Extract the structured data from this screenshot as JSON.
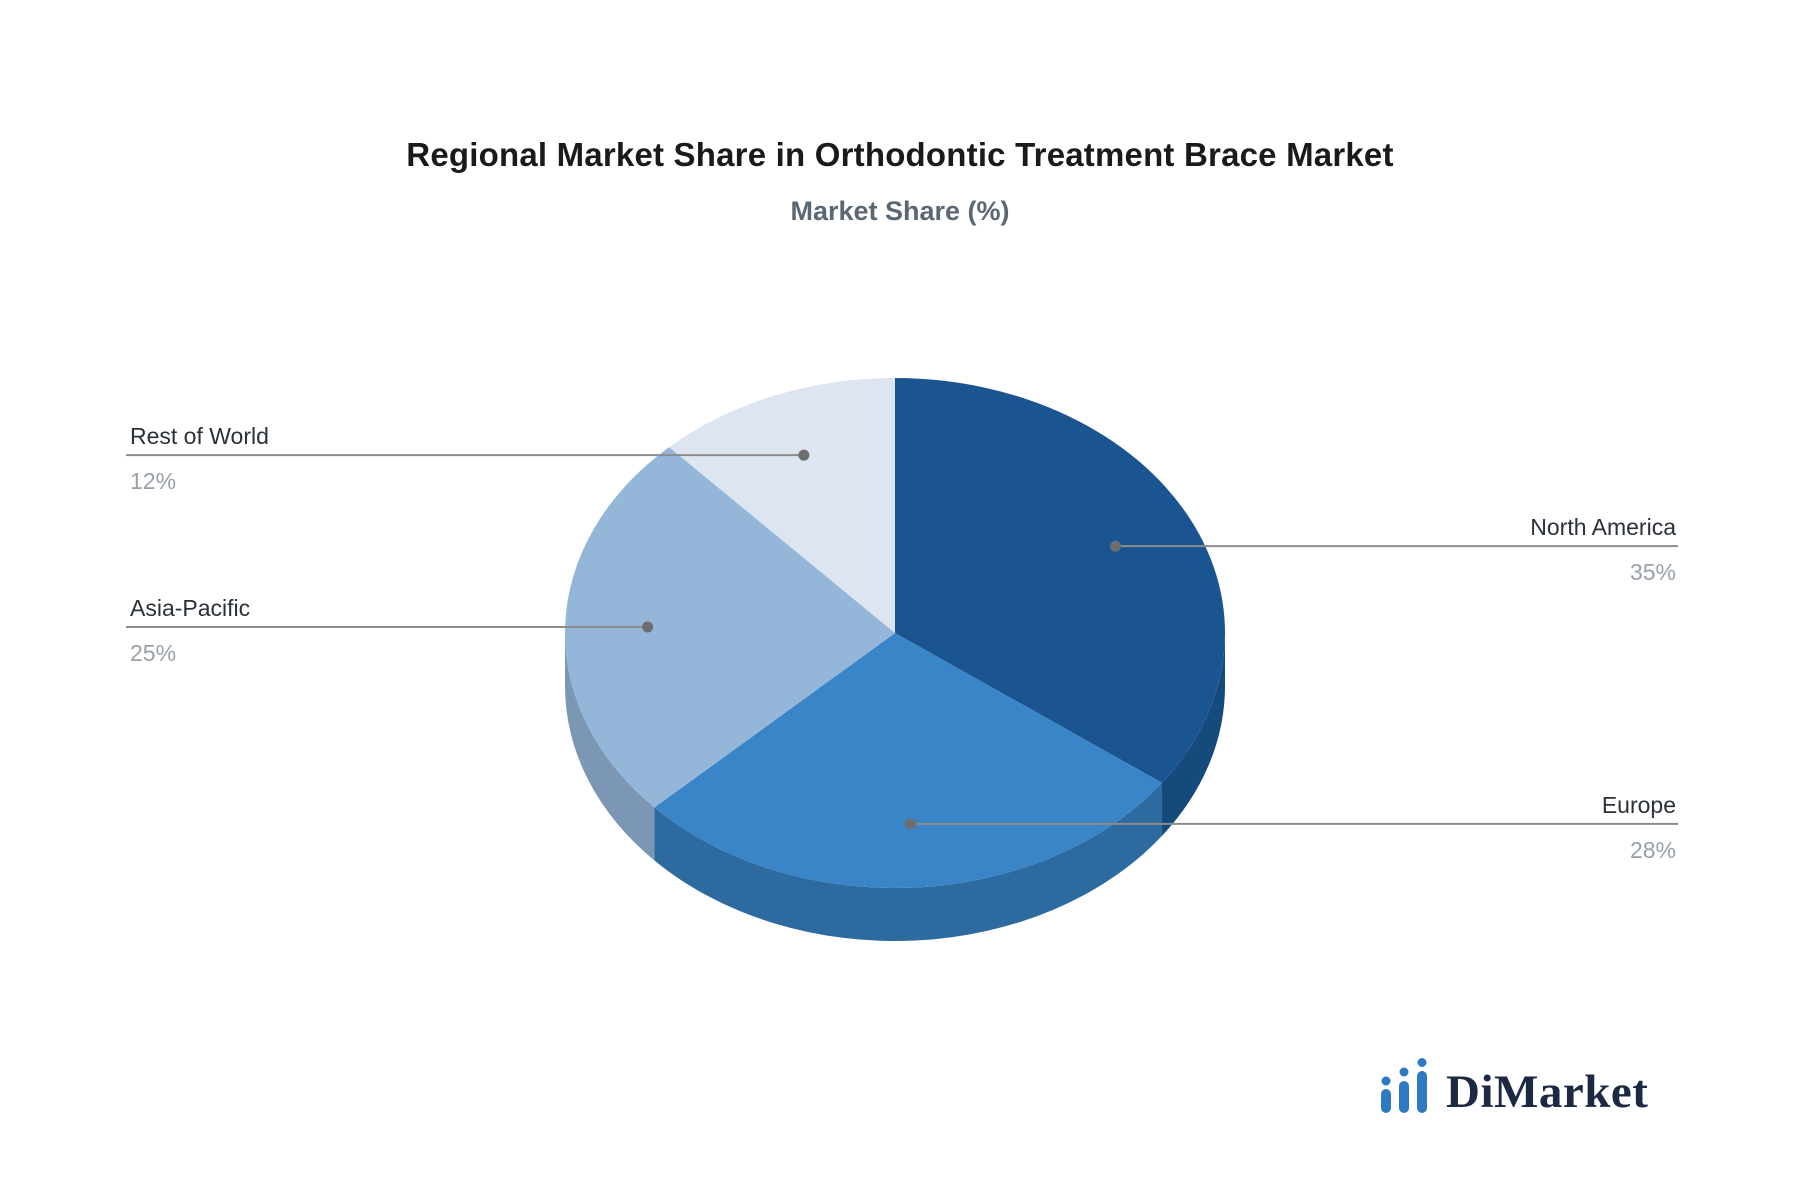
{
  "chart_data": {
    "type": "pie",
    "title": "Regional Market Share in Orthodontic Treatment Brace Market",
    "subtitle": "Market Share (%)",
    "unit": "%",
    "legend_position": "none",
    "labels": [
      "North America",
      "Europe",
      "Asia-Pacific",
      "Rest of World"
    ],
    "values": [
      35,
      28,
      25,
      12
    ],
    "slices": [
      {
        "label": "North America",
        "value": 35,
        "display": "35%",
        "color": "#1b5591",
        "side_color": "#154a7c"
      },
      {
        "label": "Europe",
        "value": 28,
        "display": "28%",
        "color": "#3a84c8",
        "side_color": "#2d6aa0"
      },
      {
        "label": "Asia-Pacific",
        "value": 25,
        "display": "25%",
        "color": "#93b6d9",
        "side_color": "#7b97b4"
      },
      {
        "label": "Rest of World",
        "value": 12,
        "display": "12%",
        "color": "#dde5f0"
      }
    ],
    "style": {
      "label_name_color": "#2b3138",
      "label_value_color": "#98a0a8",
      "leader_line_color": "#8c8c8c",
      "leader_dot_color": "#6e6e6e"
    }
  },
  "branding": {
    "logo_text": "DiMarket",
    "logo_color": "#2e79c2"
  }
}
